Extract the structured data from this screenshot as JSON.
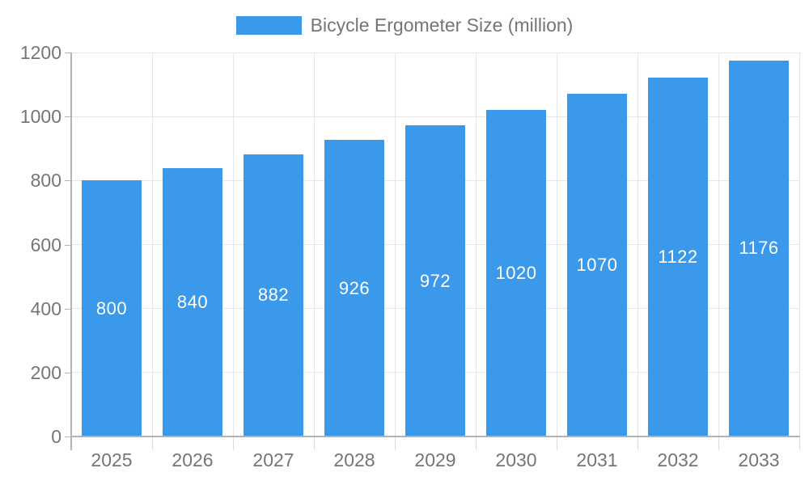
{
  "chart_data": {
    "type": "bar",
    "title": "Bicycle Ergometer Size (million)",
    "categories": [
      "2025",
      "2026",
      "2027",
      "2028",
      "2029",
      "2030",
      "2031",
      "2032",
      "2033"
    ],
    "values": [
      800,
      840,
      882,
      926,
      972,
      1020,
      1070,
      1122,
      1176
    ],
    "xlabel": "",
    "ylabel": "",
    "ylim": [
      0,
      1200
    ],
    "yticks": [
      0,
      200,
      400,
      600,
      800,
      1000,
      1200
    ],
    "grid": true,
    "legend_position": "top-center",
    "bar_label_position": "inside-middle",
    "colors": {
      "bar": "#3b99ec",
      "bar_label": "#ffffff",
      "axis_text": "#757575",
      "grid_line": "#e6e6e6",
      "axis_line": "#b3b3b3",
      "tick_line": "#dcdcdc",
      "background": "#ffffff"
    }
  }
}
